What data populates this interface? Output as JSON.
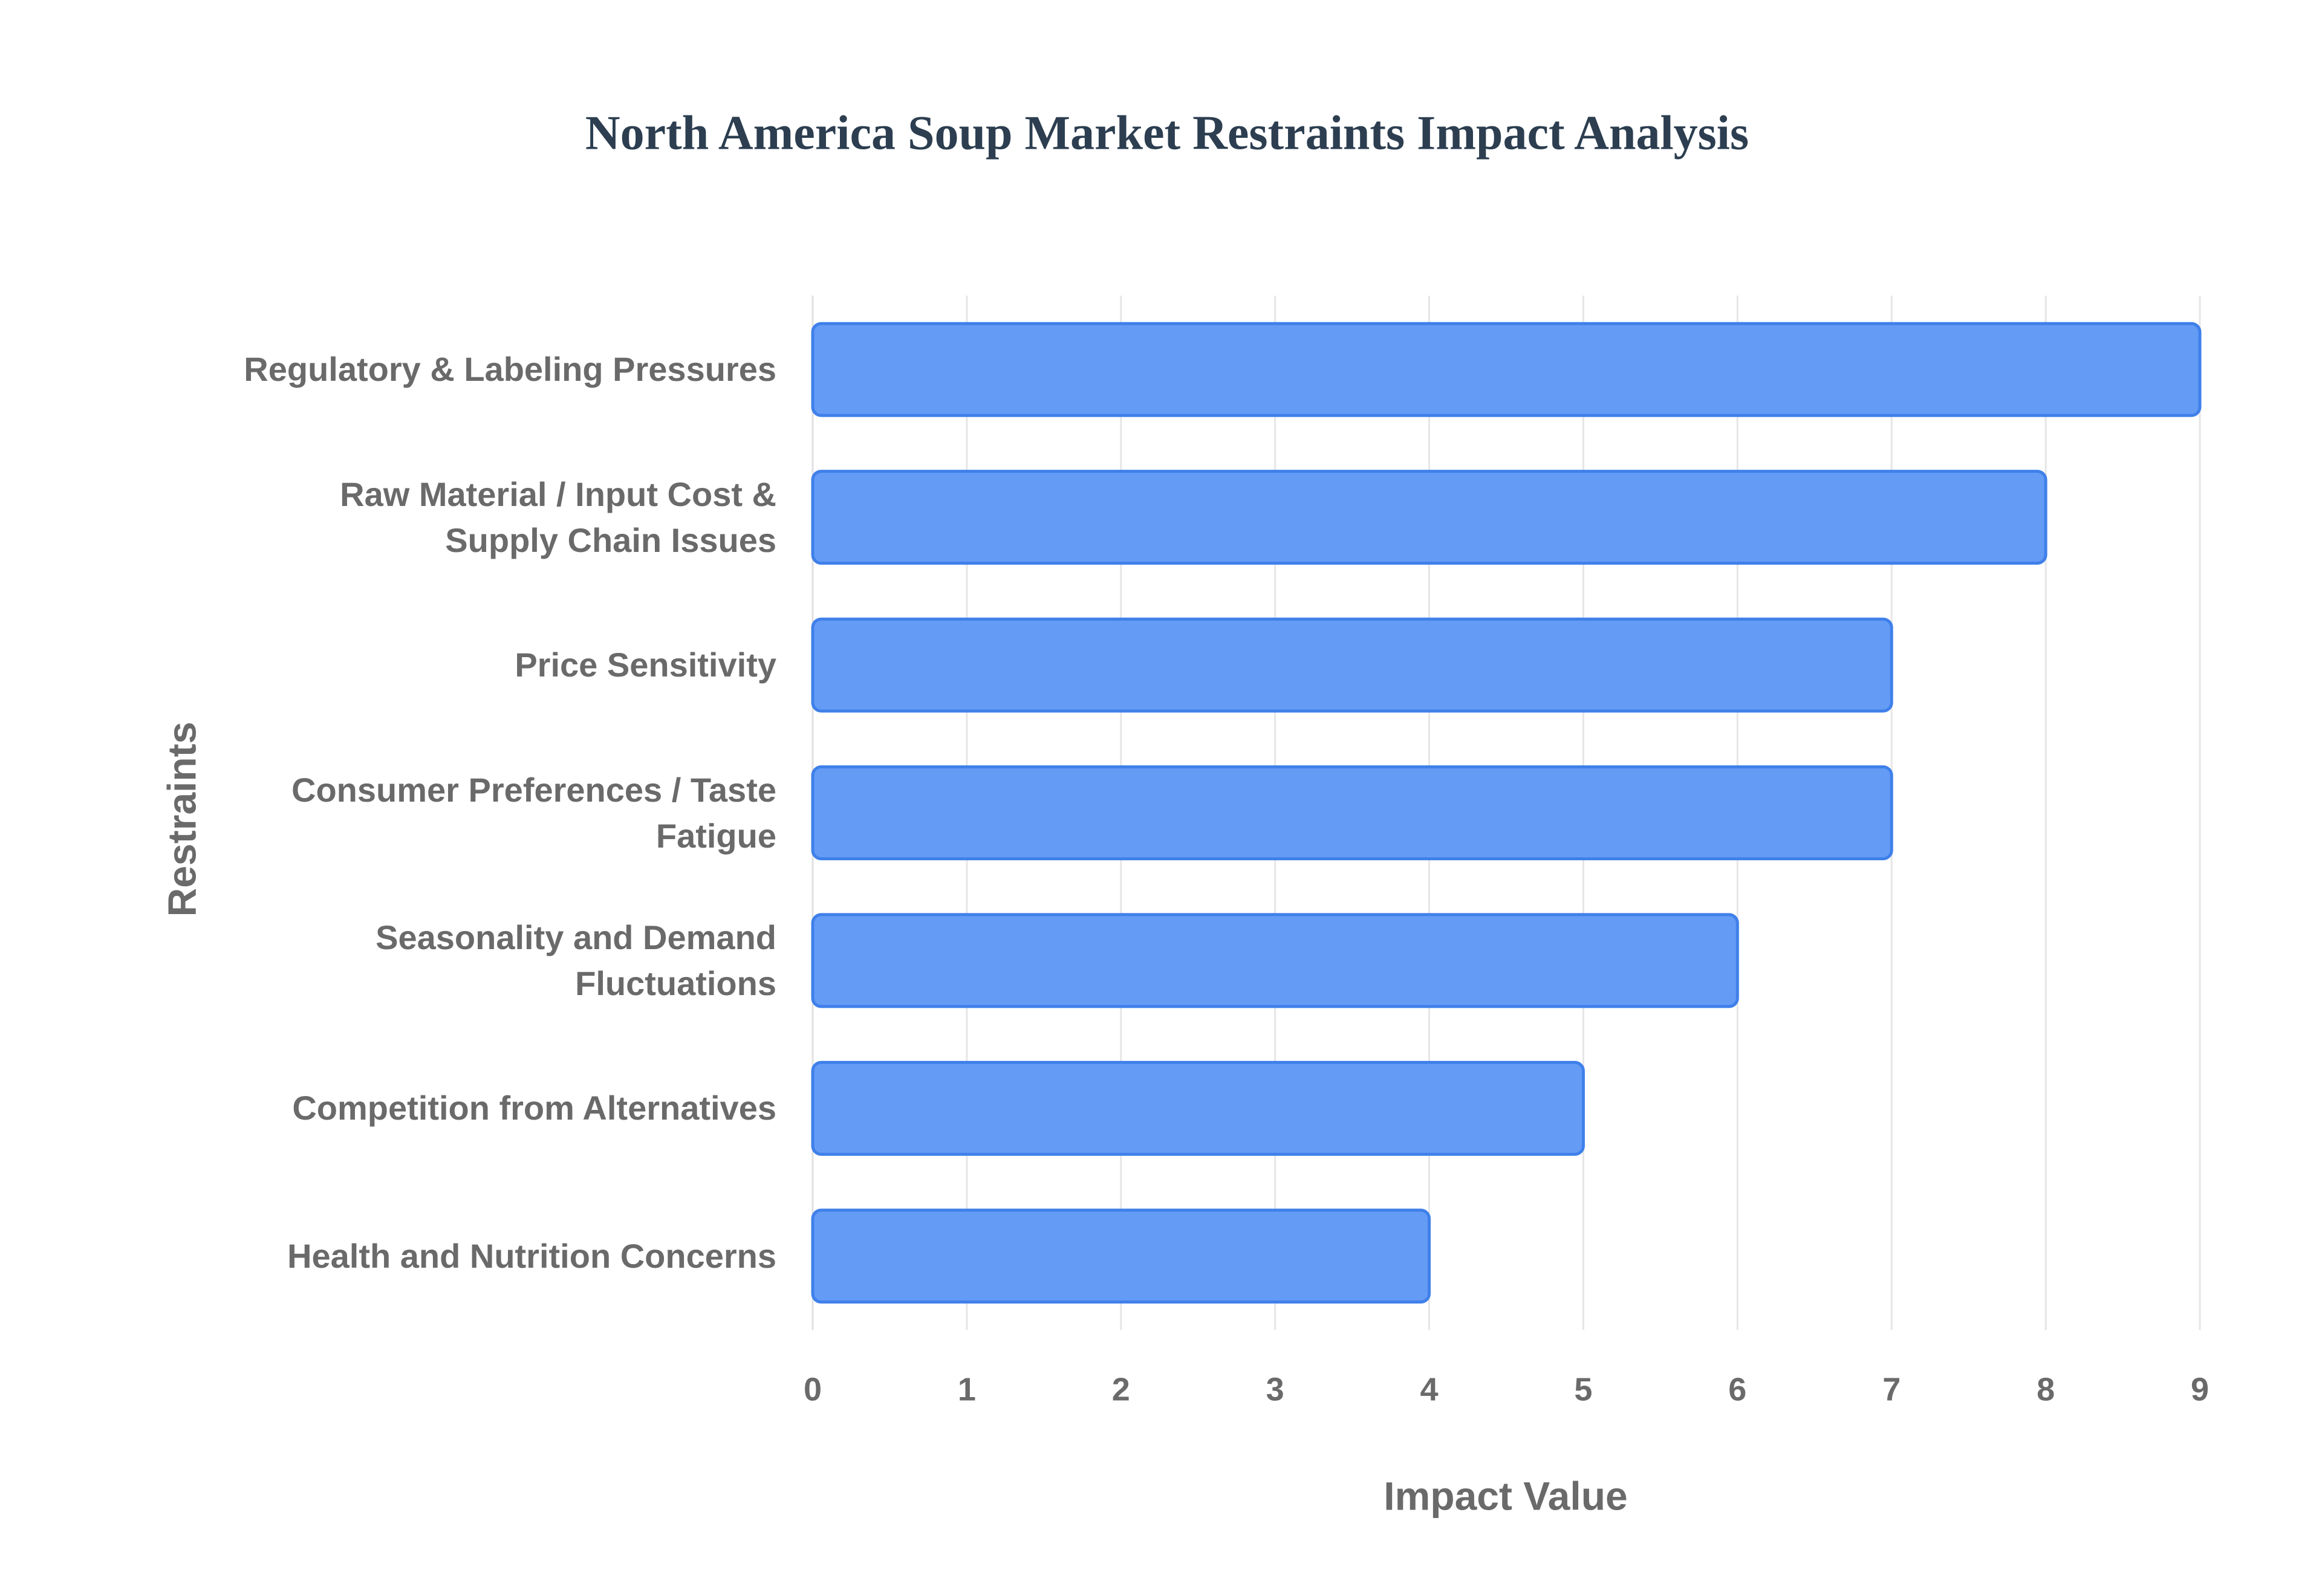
{
  "chart_data": {
    "type": "bar",
    "orientation": "horizontal",
    "title": "North America Soup Market Restraints Impact Analysis",
    "x_label": "Impact Value",
    "y_label": "Restraints",
    "categories": [
      "Regulatory & Labeling Pressures",
      "Raw Material / Input Cost & Supply Chain Issues",
      "Price Sensitivity",
      "Consumer Preferences / Taste Fatigue",
      "Seasonality and Demand Fluctuations",
      "Competition from Alternatives",
      "Health and Nutrition Concerns"
    ],
    "values": [
      9,
      8,
      7,
      7,
      6,
      5,
      4
    ],
    "color": "#6199f5",
    "xlim": [
      0,
      9
    ],
    "xticks": [
      0,
      1,
      2,
      3,
      4,
      5,
      6,
      7,
      8,
      9
    ],
    "grid": true
  }
}
